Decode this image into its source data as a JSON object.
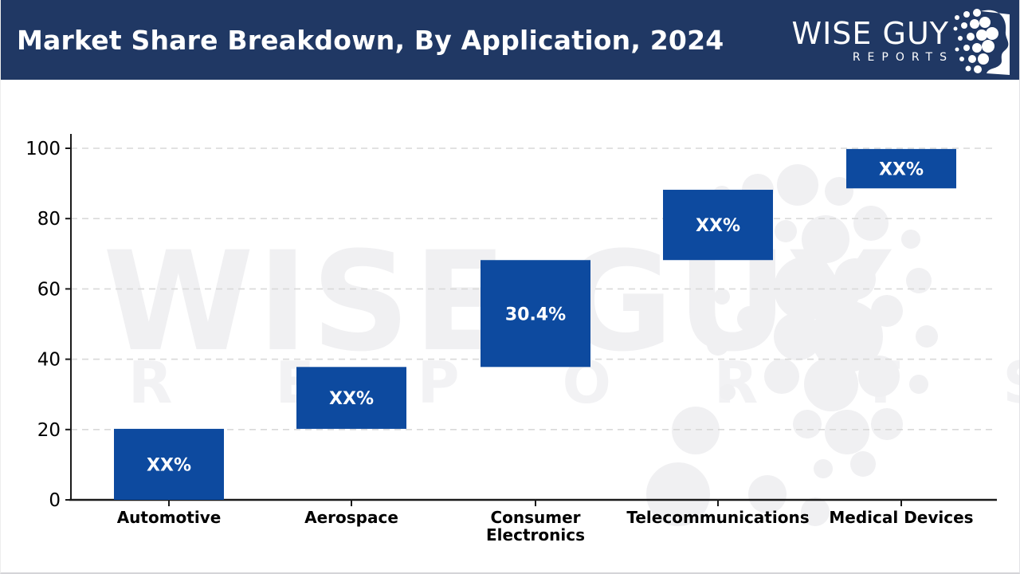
{
  "header": {
    "title": "Market Share Breakdown, By Application, 2024",
    "bg_color": "#203864",
    "logo": {
      "line1": "WISE GUY",
      "line2": "REPORTS",
      "icon": "dotted-head-profile"
    }
  },
  "watermark": {
    "line1": "WISE GUY",
    "line2": "R E P O R T S",
    "icon": "dotted-head-profile"
  },
  "chart_data": {
    "type": "bar",
    "variant": "floating-breakdown-waterfall",
    "title": "Market Share Breakdown, By Application, 2024",
    "categories": [
      "Automotive",
      "Aerospace",
      "Consumer Electronics",
      "Telecommunications",
      "Medical Devices"
    ],
    "category_label_lines": [
      [
        "Automotive"
      ],
      [
        "Aerospace"
      ],
      [
        "Consumer",
        "Electronics"
      ],
      [
        "Telecommunications"
      ],
      [
        "Medical Devices"
      ]
    ],
    "segments": [
      {
        "category": "Automotive",
        "start": 0,
        "end": 20.2,
        "label": "XX%"
      },
      {
        "category": "Aerospace",
        "start": 20.2,
        "end": 37.8,
        "label": "XX%"
      },
      {
        "category": "Consumer Electronics",
        "start": 37.8,
        "end": 68.2,
        "label": "30.4%"
      },
      {
        "category": "Telecommunications",
        "start": 68.2,
        "end": 88.2,
        "label": "XX%"
      },
      {
        "category": "Medical Devices",
        "start": 88.6,
        "end": 99.8,
        "label": "XX%"
      }
    ],
    "xlabel": "",
    "ylabel": "",
    "ylim": [
      0,
      100
    ],
    "yticks": [
      0,
      20,
      40,
      60,
      80,
      100
    ],
    "grid": "horizontal-dashed",
    "legend": null,
    "colors": {
      "bar": "#0d4a9f",
      "bar_label": "#ffffff",
      "axis": "#1a1a1a",
      "tick_label": "#000000",
      "gridline": "#d9d9d9"
    }
  }
}
